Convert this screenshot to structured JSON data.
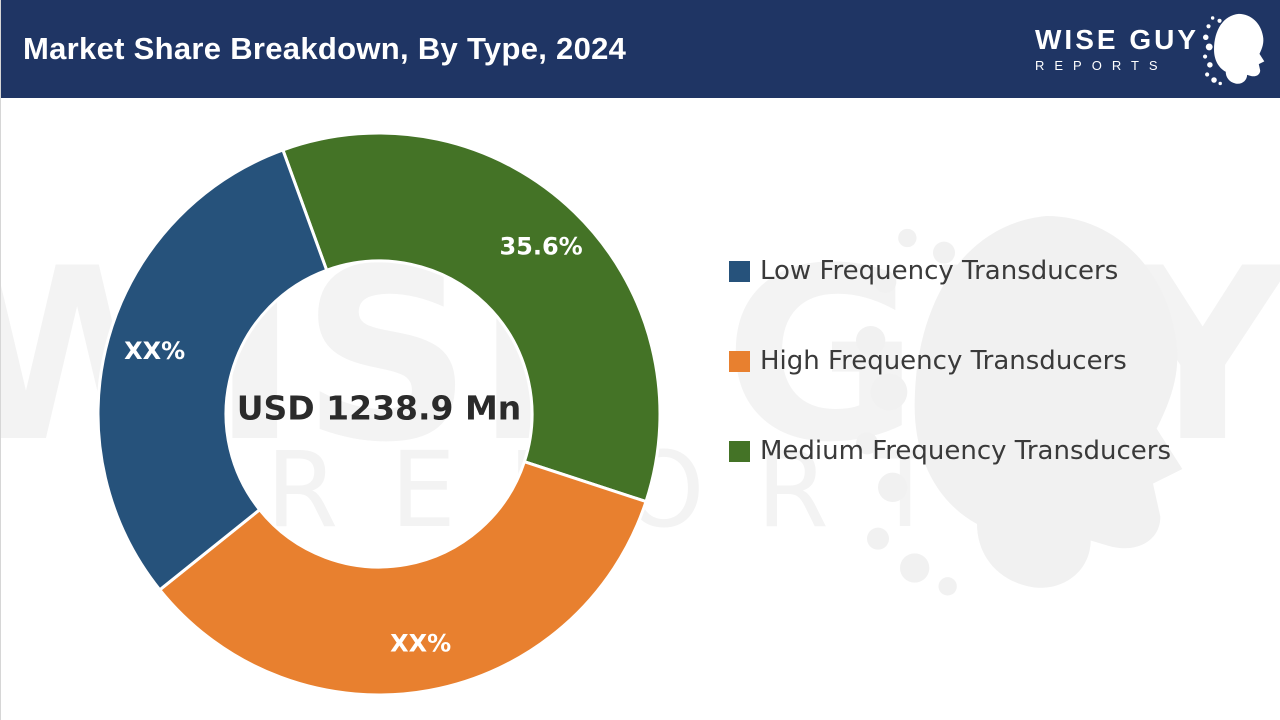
{
  "header": {
    "title": "Market Share Breakdown, By Type, 2024",
    "logo": {
      "line1": "WISE GUY",
      "line2": "REPORTS"
    }
  },
  "watermark": {
    "line1": "WISE GUY",
    "line2": "REPORTS"
  },
  "chart_data": {
    "type": "pie",
    "subtype": "donut",
    "title": "Market Share Breakdown, By Type, 2024",
    "center_label": "USD 1238.9 Mn",
    "start_angle_deg": -20,
    "direction": "clockwise",
    "legend_position": "right",
    "segments": [
      {
        "name": "Medium Frequency Transducers",
        "label": "35.6%",
        "value_pct": 35.6,
        "color": "#447326"
      },
      {
        "name": "High Frequency Transducers",
        "label": "XX%",
        "value_pct": 34.2,
        "color": "#E8802F"
      },
      {
        "name": "Low Frequency Transducers",
        "label": "XX%",
        "value_pct": 30.2,
        "color": "#26527B"
      }
    ]
  },
  "legend": {
    "items": [
      {
        "label": "Low Frequency Transducers",
        "color": "#26527B"
      },
      {
        "label": "High Frequency Transducers",
        "color": "#E8802F"
      },
      {
        "label": "Medium Frequency Transducers",
        "color": "#447326"
      }
    ]
  },
  "colors": {
    "header_bg": "#1F3564",
    "center_text": "#2B2B2B",
    "legend_text": "#3A3A3A",
    "watermark": "#F3F3F3",
    "page_border": "#D6D6D6"
  }
}
